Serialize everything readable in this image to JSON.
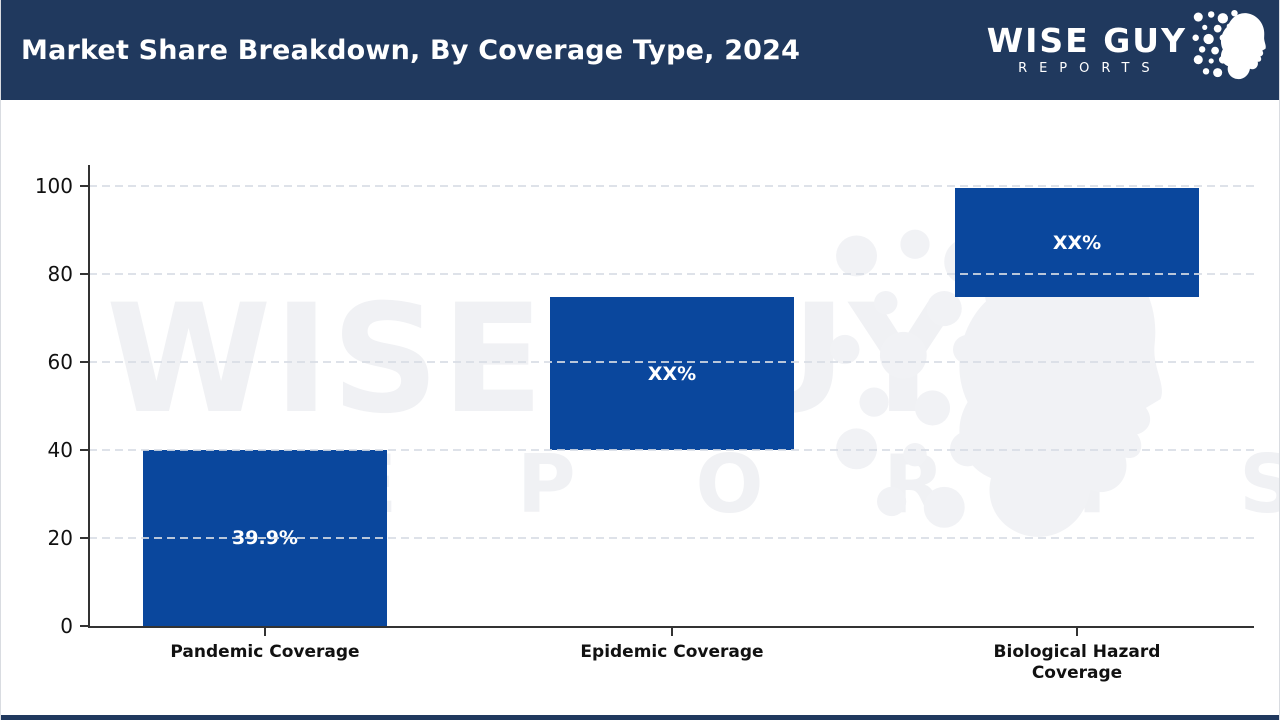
{
  "header": {
    "title": "Market Share Breakdown, By Coverage Type, 2024",
    "logo": {
      "line1": "WISE GUY",
      "line2": "REPORTS"
    }
  },
  "watermark": {
    "line1": "WISE GUY",
    "line2": "R E P O R T S"
  },
  "chart_data": {
    "type": "bar",
    "subtype": "waterfall-floating-bars",
    "title": "Market Share Breakdown, By Coverage Type, 2024",
    "categories": [
      "Pandemic Coverage",
      "Epidemic Coverage",
      "Biological Hazard Coverage"
    ],
    "bars": [
      {
        "category": "Pandemic Coverage",
        "start": 0,
        "end": 39.9,
        "label": "39.9%"
      },
      {
        "category": "Epidemic Coverage",
        "start": 39.9,
        "end": 74.8,
        "label": "XX%"
      },
      {
        "category": "Biological Hazard Coverage",
        "start": 74.8,
        "end": 99.5,
        "label": "XX%"
      }
    ],
    "xlabel": "",
    "ylabel": "",
    "ylim": [
      0,
      100
    ],
    "yticks": [
      0,
      20,
      40,
      60,
      80,
      100
    ],
    "grid": "horizontal-dashed",
    "legend": "none"
  },
  "colors": {
    "header_bg": "#20395E",
    "bar": "#0A479D",
    "bar_label": "#FFFFFF",
    "watermark": "#F0F1F4",
    "axis": "#333333"
  }
}
